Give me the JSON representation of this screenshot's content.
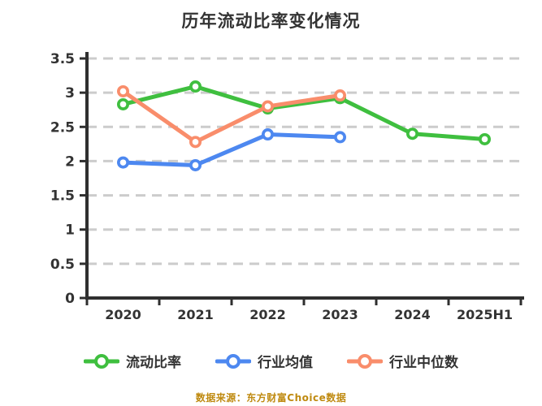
{
  "title": "历年流动比率变化情况",
  "watermark": "数据来源：东方财富Choice数据",
  "colors": {
    "series_green": "#3fbf3f",
    "series_blue": "#4d88f0",
    "series_orange": "#f98d6b",
    "axis": "#2f2f2f",
    "grid": "#cccccc",
    "text": "#333333",
    "watermark": "#bf8a10",
    "marker_center": "#ffffff",
    "background": "#ffffff"
  },
  "chart_data": {
    "type": "line",
    "title": "历年流动比率变化情况",
    "categories": [
      "2020",
      "2021",
      "2022",
      "2023",
      "2024",
      "2025H1"
    ],
    "series": [
      {
        "name": "流动比率",
        "color": "#3fbf3f",
        "values": [
          2.83,
          3.09,
          2.77,
          2.92,
          2.4,
          2.32
        ]
      },
      {
        "name": "行业均值",
        "color": "#4d88f0",
        "values": [
          1.98,
          1.94,
          2.39,
          2.35,
          null,
          null
        ]
      },
      {
        "name": "行业中位数",
        "color": "#f98d6b",
        "values": [
          3.02,
          2.28,
          2.8,
          2.96,
          null,
          null
        ]
      }
    ],
    "xlabel": "",
    "ylabel": "",
    "ylim": [
      0,
      3.5
    ],
    "yticks": [
      0,
      0.5,
      1,
      1.5,
      2,
      2.5,
      3,
      3.5
    ],
    "grid": true,
    "grid_style": "dashed",
    "legend_position": "bottom"
  }
}
